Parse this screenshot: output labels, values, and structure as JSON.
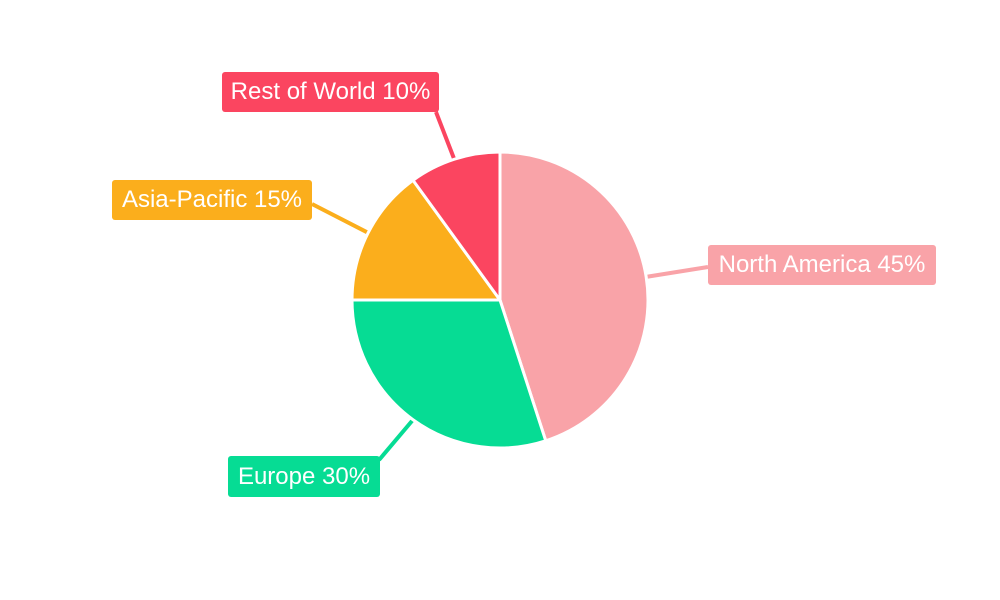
{
  "chart_data": {
    "type": "pie",
    "title": "",
    "unit": "%",
    "direction": "clockwise",
    "start_angle": "top",
    "legend_position": "none",
    "background_color": "#FFFFFF",
    "slice_border_color": "#FFFFFF",
    "label_text_color": "#FFFFFF",
    "slices": [
      {
        "label": "North America",
        "value": 45,
        "display_label": "North America 45%",
        "color": "#F9A3A8"
      },
      {
        "label": "Europe",
        "value": 30,
        "display_label": "Europe 30%",
        "color": "#06DC94"
      },
      {
        "label": "Asia-Pacific",
        "value": 15,
        "display_label": "Asia-Pacific 15%",
        "color": "#FBAE1C"
      },
      {
        "label": "Rest of World",
        "value": 10,
        "display_label": "Rest of World 10%",
        "color": "#FB4560"
      }
    ]
  }
}
